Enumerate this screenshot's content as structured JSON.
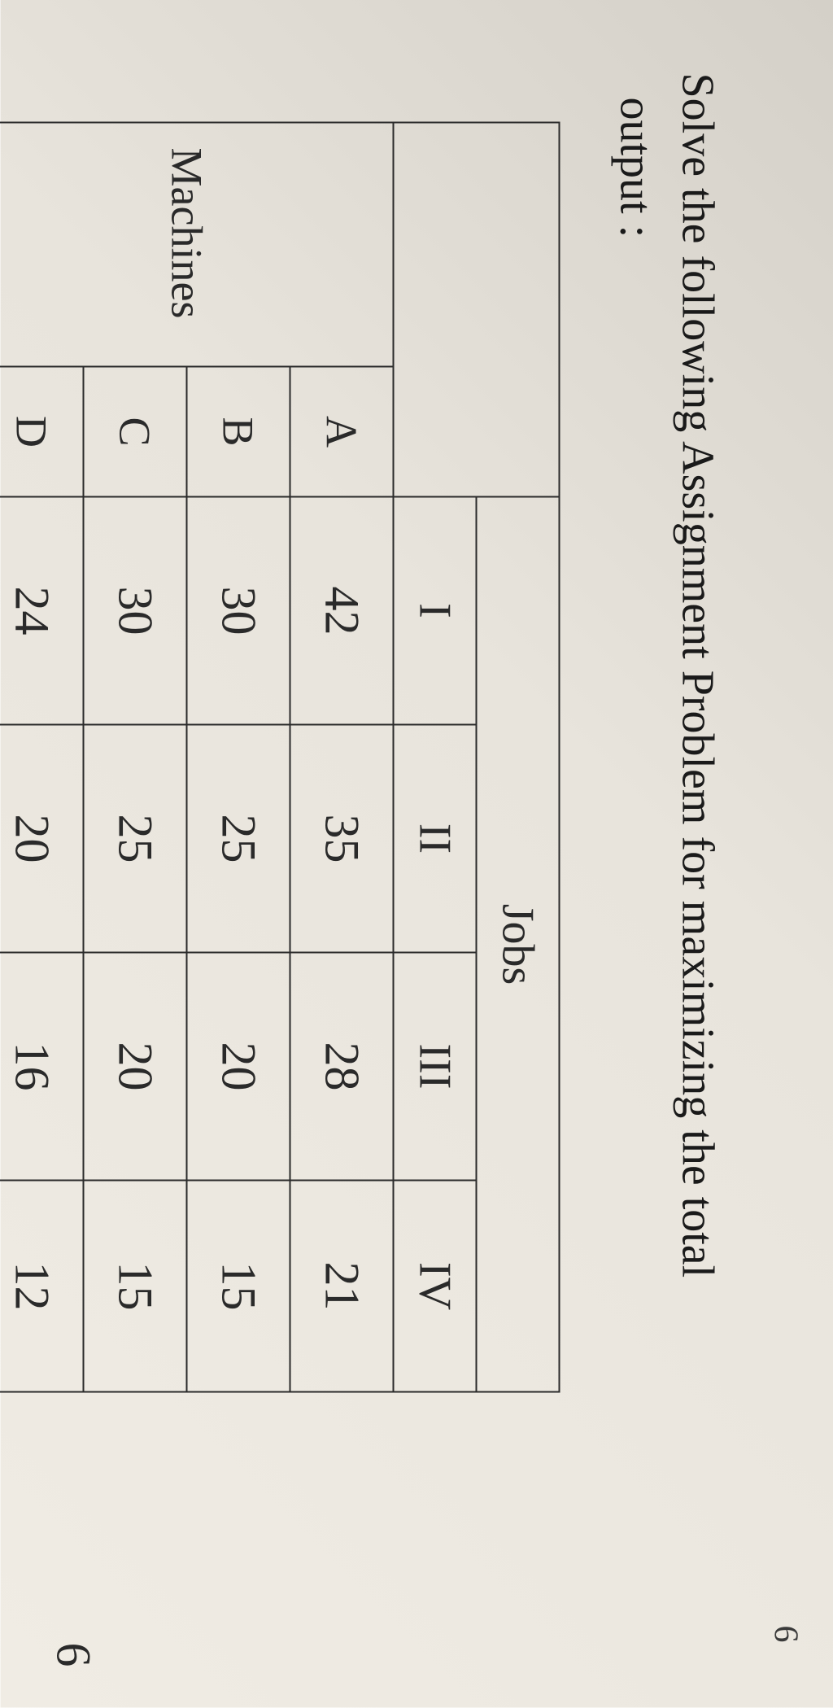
{
  "page_number_top": "6",
  "question": {
    "line1": "Solve the following Assignment Problem for maximizing the total",
    "line2": "output :"
  },
  "table": {
    "jobs_label": "Jobs",
    "machines_label": "Machines",
    "columns": [
      "I",
      "II",
      "III",
      "IV"
    ],
    "row_labels": [
      "A",
      "B",
      "C",
      "D"
    ],
    "rows": [
      [
        42,
        35,
        28,
        21
      ],
      [
        30,
        25,
        20,
        15
      ],
      [
        30,
        25,
        20,
        15
      ],
      [
        24,
        20,
        16,
        12
      ]
    ]
  },
  "side_marks": "6",
  "styling": {
    "paper_bg_start": "#d4d0c8",
    "paper_bg_end": "#f0ece4",
    "text_color": "#1a1a1a",
    "border_color": "#2a2a2a",
    "font_family": "Times New Roman",
    "base_fontsize_pt": 42,
    "table_fontsize_pt": 42,
    "rotation_deg": 90
  }
}
